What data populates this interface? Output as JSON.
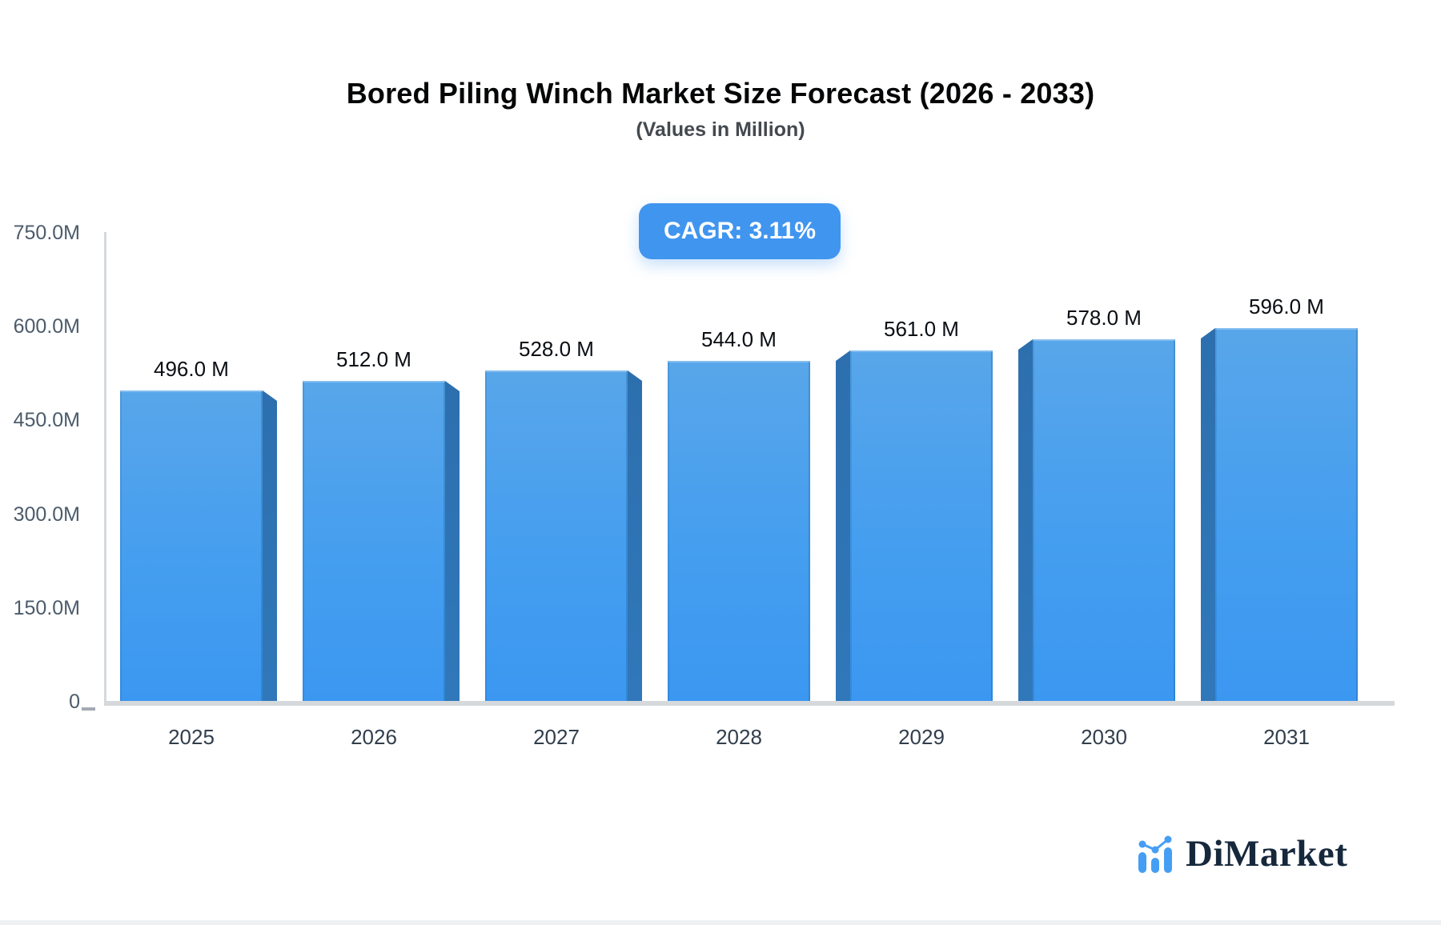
{
  "title": "Bored Piling Winch Market Size Forecast (2026 - 2033)",
  "subtitle": "(Values in Million)",
  "badge": {
    "label": "CAGR: 3.11%"
  },
  "logo": {
    "text": "DiMarket",
    "icon": "bar-line-chart-icon"
  },
  "colors": {
    "bar_top": "#58a6ea",
    "bar_bottom": "#3b97f0",
    "bar_side": "#2e74b2",
    "badge_bg": "#4095ef",
    "axis_line": "#d6d9dc",
    "y_label": "#4c5b6b",
    "x_label": "#313e4c",
    "value_label": "#0a0e13",
    "logo_blue": "#459ef4",
    "logo_navy": "#16283c"
  },
  "chart_data": {
    "type": "bar",
    "title": "Bored Piling Winch Market Size Forecast (2026 - 2033)",
    "subtitle": "(Values in Million)",
    "xlabel": "",
    "ylabel": "",
    "categories": [
      "2025",
      "2026",
      "2027",
      "2028",
      "2029",
      "2030",
      "2031"
    ],
    "values": [
      496,
      512,
      528,
      544,
      561,
      578,
      596
    ],
    "value_labels": [
      "496.0 M",
      "512.0 M",
      "528.0 M",
      "544.0 M",
      "561.0 M",
      "578.0 M",
      "596.0 M"
    ],
    "unit": "Million",
    "y_ticks": [
      {
        "value": 750,
        "label": "750.0M"
      },
      {
        "value": 600,
        "label": "600.0M"
      },
      {
        "value": 450,
        "label": "450.0M"
      },
      {
        "value": 300,
        "label": "300.0M"
      },
      {
        "value": 150,
        "label": "150.0M"
      },
      {
        "value": 0,
        "label": "0"
      }
    ],
    "ylim": [
      0,
      750
    ],
    "grid": false,
    "legend_position": "none",
    "annotations": [
      "CAGR: 3.11%"
    ]
  }
}
